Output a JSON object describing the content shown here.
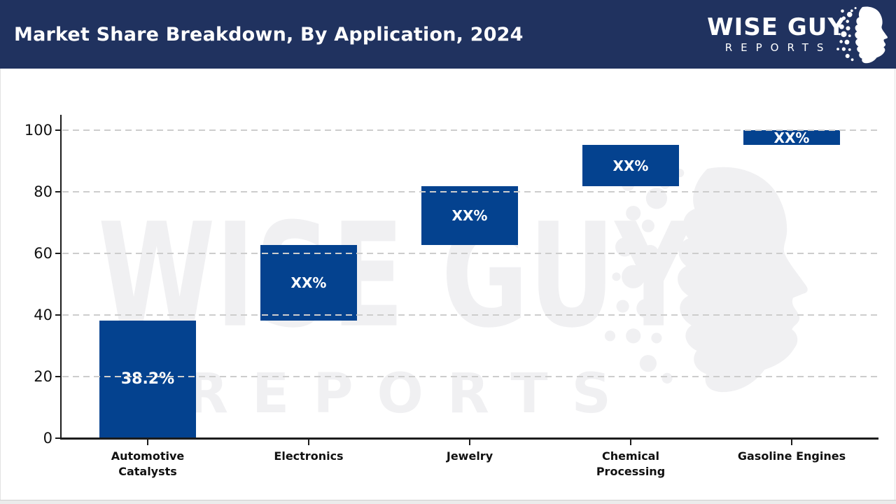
{
  "header": {
    "title": "Market Share Breakdown, By Application, 2024",
    "logo": {
      "line1": "WISE GUY",
      "line2": "REPORTS"
    },
    "bg_color": "#20325f"
  },
  "watermark": {
    "line1": "WISE GUY",
    "line2": "REPORTS"
  },
  "chart_data": {
    "type": "bar",
    "subtype": "waterfall",
    "title": "Market Share Breakdown, By Application, 2024",
    "categories": [
      "Automotive\nCatalysts",
      "Electronics",
      "Jewelry",
      "Chemical\nProcessing",
      "Gasoline Engines"
    ],
    "segments": [
      {
        "category": "Automotive Catalysts",
        "label": "38.2%",
        "start": 0,
        "end": 38.2
      },
      {
        "category": "Electronics",
        "label": "XX%",
        "start": 38.2,
        "end": 62.8
      },
      {
        "category": "Jewelry",
        "label": "XX%",
        "start": 62.8,
        "end": 81.8
      },
      {
        "category": "Chemical Processing",
        "label": "XX%",
        "start": 81.8,
        "end": 95.2
      },
      {
        "category": "Gasoline Engines",
        "label": "XX%",
        "start": 95.2,
        "end": 100
      }
    ],
    "yticks": [
      0,
      20,
      40,
      60,
      80,
      100
    ],
    "ylim": [
      0,
      105
    ],
    "bar_color": "#04428f",
    "grid": "horizontal-dashed",
    "gridline_color": "#cdcdcd",
    "legend_position": "none"
  }
}
